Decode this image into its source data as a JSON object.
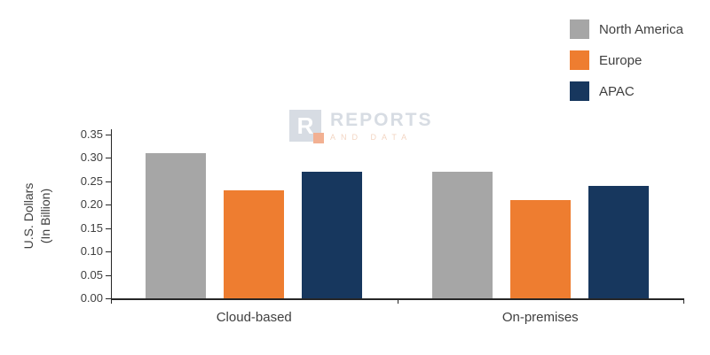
{
  "chart_data": {
    "type": "bar",
    "title": "",
    "categories": [
      "Cloud-based",
      "On-premises"
    ],
    "series": [
      {
        "name": "North America",
        "color": "#a6a6a6",
        "values": [
          0.31,
          0.27
        ]
      },
      {
        "name": "Europe",
        "color": "#ee7d30",
        "values": [
          0.23,
          0.21
        ]
      },
      {
        "name": "APAC",
        "color": "#17375e",
        "values": [
          0.27,
          0.24
        ]
      }
    ],
    "xlabel": "",
    "ylabel_line1": "U.S. Dollars",
    "ylabel_line2": "(In Billion)",
    "ylim": [
      0,
      0.35
    ],
    "y_tick_step": 0.05,
    "y_ticks": [
      "0.00",
      "0.05",
      "0.10",
      "0.15",
      "0.20",
      "0.25",
      "0.30",
      "0.35"
    ],
    "grid": false,
    "legend_position": "top-right"
  },
  "watermark": {
    "logo_letter": "R",
    "line1": "REPORTS",
    "line2": "AND DATA"
  }
}
